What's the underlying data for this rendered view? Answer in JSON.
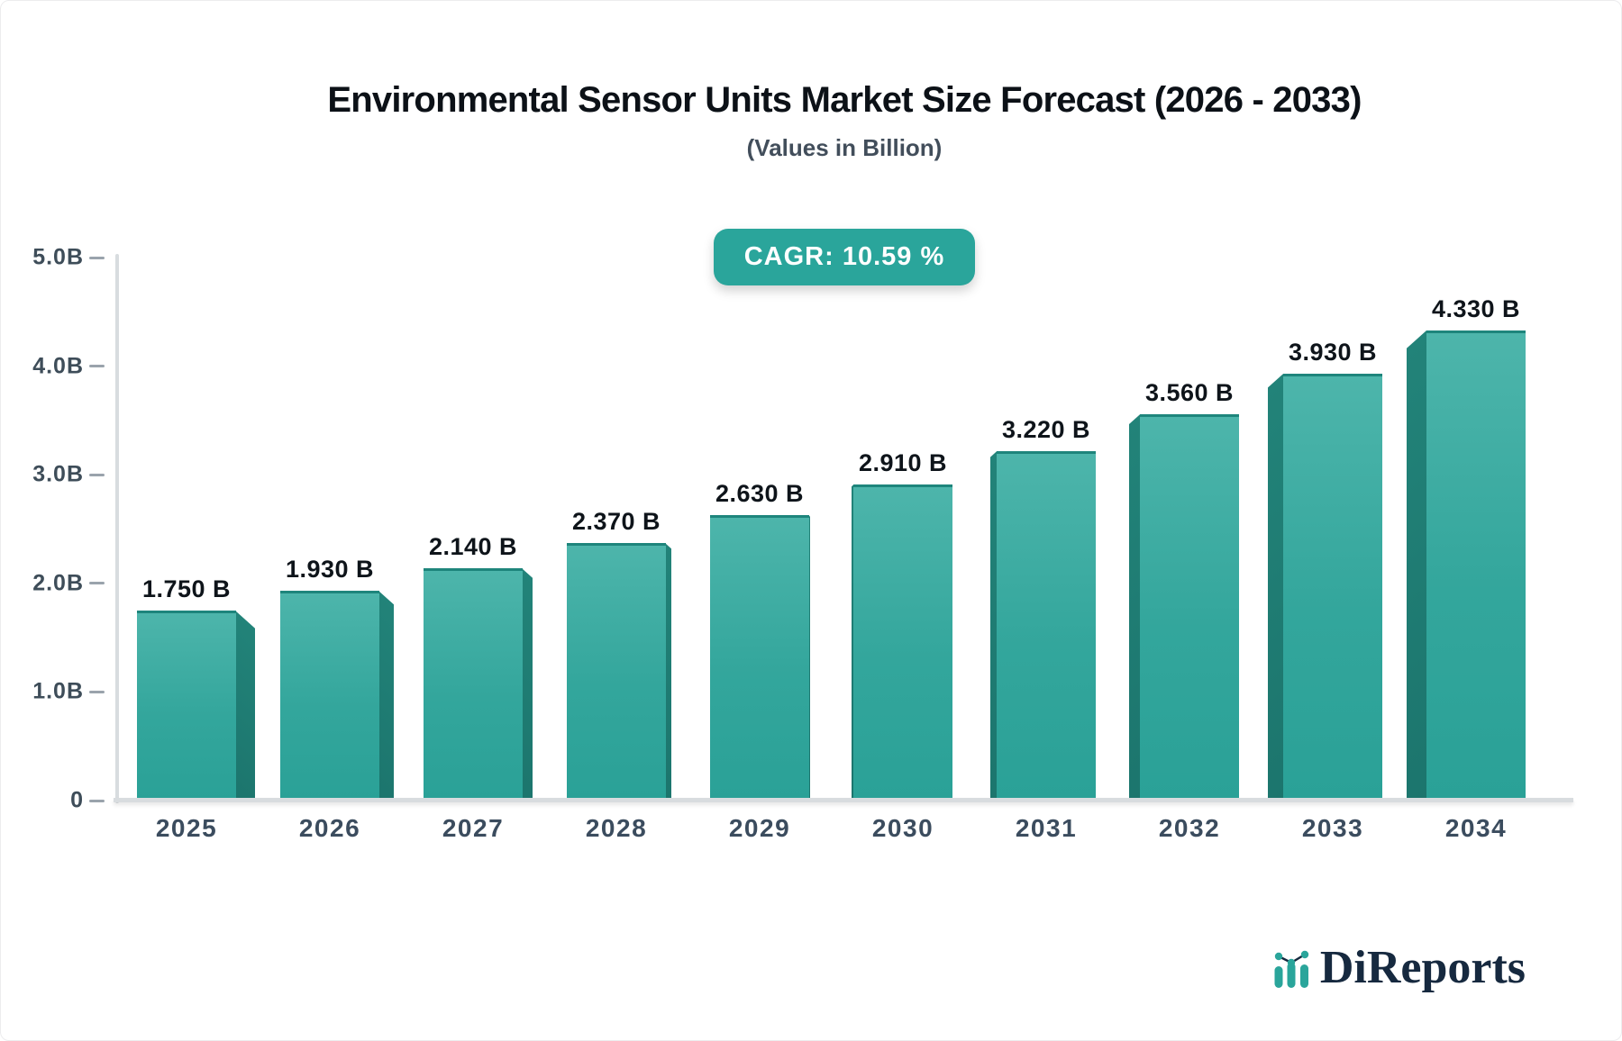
{
  "header": {
    "title": "Environmental Sensor Units Market Size Forecast (2026 - 2033)",
    "subtitle": "(Values in Billion)",
    "cagr_label": "CAGR: 10.59 %"
  },
  "chart_data": {
    "type": "bar",
    "title": "Environmental Sensor Units Market Size Forecast (2026 - 2033)",
    "subtitle": "(Values in Billion)",
    "cagr_percent": "10.59 %",
    "unit": "Billion",
    "categories": [
      "2025",
      "2026",
      "2027",
      "2028",
      "2029",
      "2030",
      "2031",
      "2032",
      "2033",
      "2034"
    ],
    "values": [
      1.75,
      1.93,
      2.14,
      2.37,
      2.63,
      2.91,
      3.22,
      3.56,
      3.93,
      4.33
    ],
    "bar_labels": [
      "1.750 B",
      "1.930 B",
      "2.140 B",
      "2.370 B",
      "2.630 B",
      "2.910 B",
      "3.220 B",
      "3.560 B",
      "3.930 B",
      "4.330 B"
    ],
    "ylim": [
      0,
      5
    ],
    "yticks": [
      {
        "value": 5,
        "label": "5.0B"
      },
      {
        "value": 4,
        "label": "4.0B"
      },
      {
        "value": 3,
        "label": "3.0B"
      },
      {
        "value": 2,
        "label": "2.0B"
      },
      {
        "value": 1,
        "label": "1.0B"
      },
      {
        "value": 0,
        "label": "0"
      }
    ],
    "grid": false,
    "legend": "none",
    "bar_color_top": "#4DB5AB",
    "bar_color_bottom": "#2AA197",
    "bar_side_color": "#1E7F77",
    "style_3d": true
  },
  "footer": {
    "logo_text": "DiReports"
  }
}
